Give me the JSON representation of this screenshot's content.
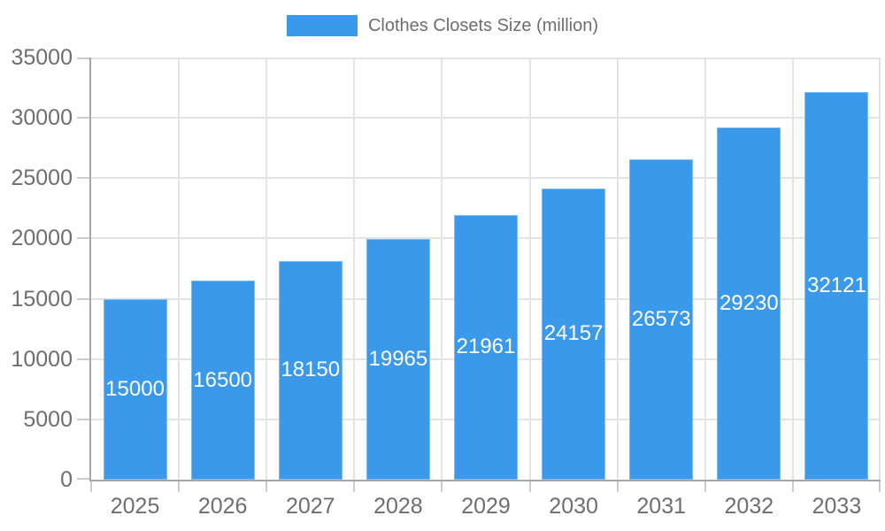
{
  "chart_data": {
    "type": "bar",
    "title": "Clothes Closets Size (million)",
    "legend_position": "top",
    "categories": [
      "2025",
      "2026",
      "2027",
      "2028",
      "2029",
      "2030",
      "2031",
      "2032",
      "2033"
    ],
    "series": [
      {
        "name": "Clothes Closets Size (million)",
        "values": [
          15000,
          16500,
          18150,
          19965,
          21961,
          24157,
          26573,
          29230,
          32121
        ]
      }
    ],
    "value_labels": [
      "15000",
      "16500",
      "18150",
      "19965",
      "21961",
      "24157",
      "26573",
      "29230",
      "32121"
    ],
    "xlabel": "",
    "ylabel": "",
    "ylim": [
      0,
      35000
    ],
    "yticks": [
      0,
      5000,
      10000,
      15000,
      20000,
      25000,
      30000,
      35000
    ],
    "ytick_labels": [
      "0",
      "5000",
      "10000",
      "15000",
      "20000",
      "25000",
      "30000",
      "35000"
    ],
    "grid": "horizontal and vertical",
    "colors": {
      "bar_fill": "#3B99EC",
      "bar_border": "#7FBCF3",
      "axis_line": "#A6A6A6",
      "grid_line": "#E3E3E3",
      "tick_mark": "#CCCCCC",
      "axis_text": "#6E6E6E",
      "legend_text": "#6E6E6E",
      "value_text": "#FFFFFF",
      "background": "#FFFFFF"
    }
  }
}
